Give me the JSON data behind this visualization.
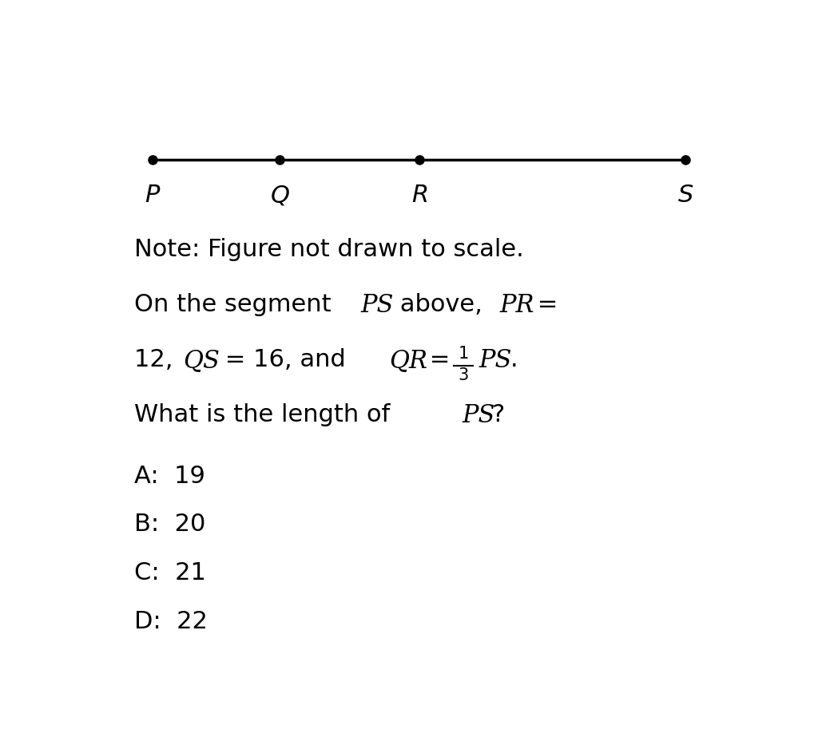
{
  "background_color": "#ffffff",
  "line_color": "#000000",
  "dot_color": "#000000",
  "points_x": [
    0.08,
    0.28,
    0.5,
    0.92
  ],
  "point_labels": [
    "P",
    "Q",
    "R",
    "S"
  ],
  "dot_size": 8,
  "line_width": 2.5,
  "point_label_fontsize": 22,
  "main_fontsize": 22,
  "choice_fontsize": 22
}
